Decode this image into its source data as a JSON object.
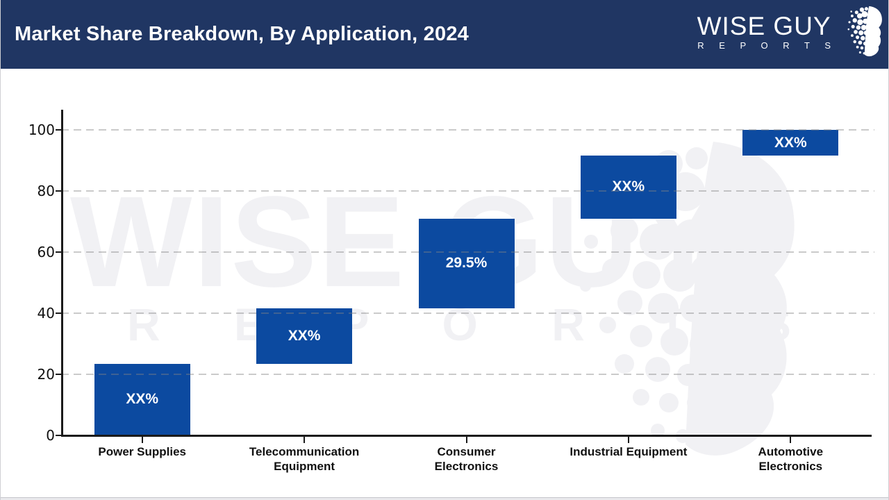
{
  "header": {
    "title": "Market Share Breakdown, By Application, 2024",
    "logo": {
      "wordmark": "WISE GUY",
      "subtitle": "R E P O R T S",
      "icon": "dotted-face-profile-icon"
    }
  },
  "watermark": {
    "line1": "WISE GUY",
    "line2": "R E P O R T S",
    "icon": "dotted-face-profile-icon"
  },
  "colors": {
    "header_bg": "#203663",
    "bar": "#0c4aa0",
    "bar_label_text": "#ffffff",
    "watermark": "#f1f1f4",
    "grid": "#d8d8d8",
    "axis": "#1a1a1a"
  },
  "chart_data": {
    "type": "bar",
    "subtype": "waterfall-floating-bars",
    "title": "Market Share Breakdown, By Application, 2024",
    "xlabel": "",
    "ylabel": "",
    "ylim": [
      0,
      100
    ],
    "yticks": [
      0,
      20,
      40,
      60,
      80,
      100
    ],
    "grid": "horizontal-dashed",
    "legend": false,
    "categories": [
      "Power Supplies",
      "Telecommunication Equipment",
      "Consumer Electronics",
      "Industrial Equipment",
      "Automotive Electronics"
    ],
    "segments": [
      {
        "category": "Power Supplies",
        "start": 0,
        "end": 23.5,
        "value": 23.5,
        "label": "XX%"
      },
      {
        "category": "Telecommunication Equipment",
        "start": 23.5,
        "end": 41.5,
        "value": 18,
        "label": "XX%"
      },
      {
        "category": "Consumer Electronics",
        "start": 41.5,
        "end": 71,
        "value": 29.5,
        "label": "29.5%"
      },
      {
        "category": "Industrial Equipment",
        "start": 71,
        "end": 91.5,
        "value": 20.5,
        "label": "XX%"
      },
      {
        "category": "Automotive Electronics",
        "start": 91.5,
        "end": 100,
        "value": 8.5,
        "label": "XX%"
      }
    ]
  }
}
